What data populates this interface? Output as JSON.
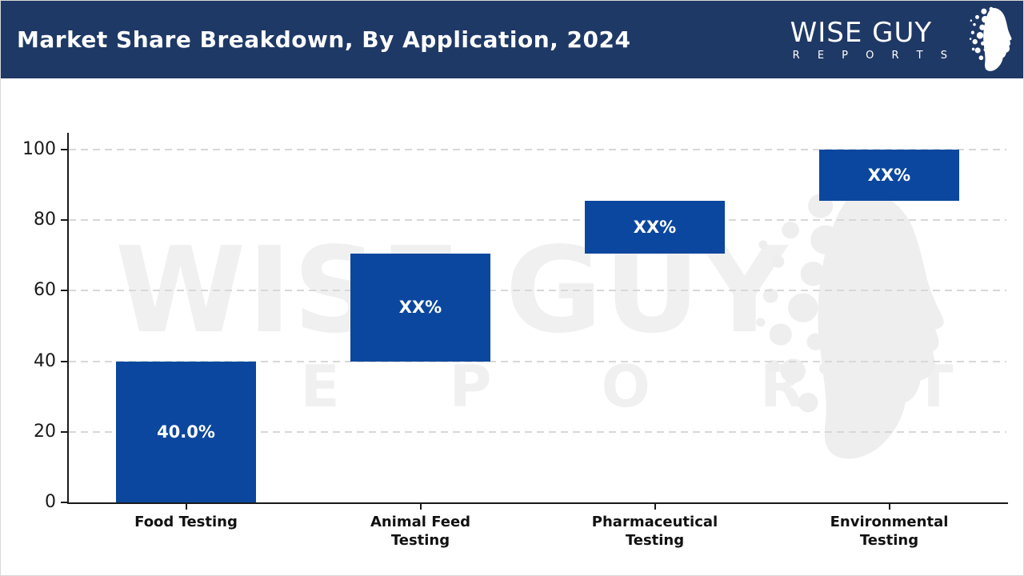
{
  "header": {
    "title": "Market Share Breakdown, By Application, 2024",
    "logo": {
      "name_line": "WISE GUY",
      "sub_line": "R E P O R T S"
    }
  },
  "watermark": {
    "name_line": "WISE GUY",
    "sub_line": "R E P O R T S"
  },
  "chart_data": {
    "type": "bar",
    "subtype": "waterfall",
    "title": "Market Share Breakdown, By Application, 2024",
    "categories": [
      "Food Testing",
      "Animal Feed\nTesting",
      "Pharmaceutical\nTesting",
      "Environmental\nTesting"
    ],
    "segments": [
      {
        "category": "Food Testing",
        "start": 0,
        "end": 40,
        "label": "40.0%"
      },
      {
        "category": "Animal Feed Testing",
        "start": 40,
        "end": 70.5,
        "label": "XX%"
      },
      {
        "category": "Pharmaceutical Testing",
        "start": 70.5,
        "end": 85.5,
        "label": "XX%"
      },
      {
        "category": "Environmental Testing",
        "start": 85.5,
        "end": 100,
        "label": "XX%"
      }
    ],
    "ylim": [
      0,
      100
    ],
    "yticks": [
      0,
      20,
      40,
      60,
      80,
      100
    ],
    "grid": "horizontal-dashed",
    "legend": "none",
    "xlabel": "",
    "ylabel": "",
    "bar_color": "#0b479e"
  },
  "colors": {
    "header_bg": "#1f3966",
    "bar": "#0b479e",
    "grid": "#d8d8d8",
    "axis": "#1a1a1a",
    "watermark": "#f0f0f0"
  }
}
